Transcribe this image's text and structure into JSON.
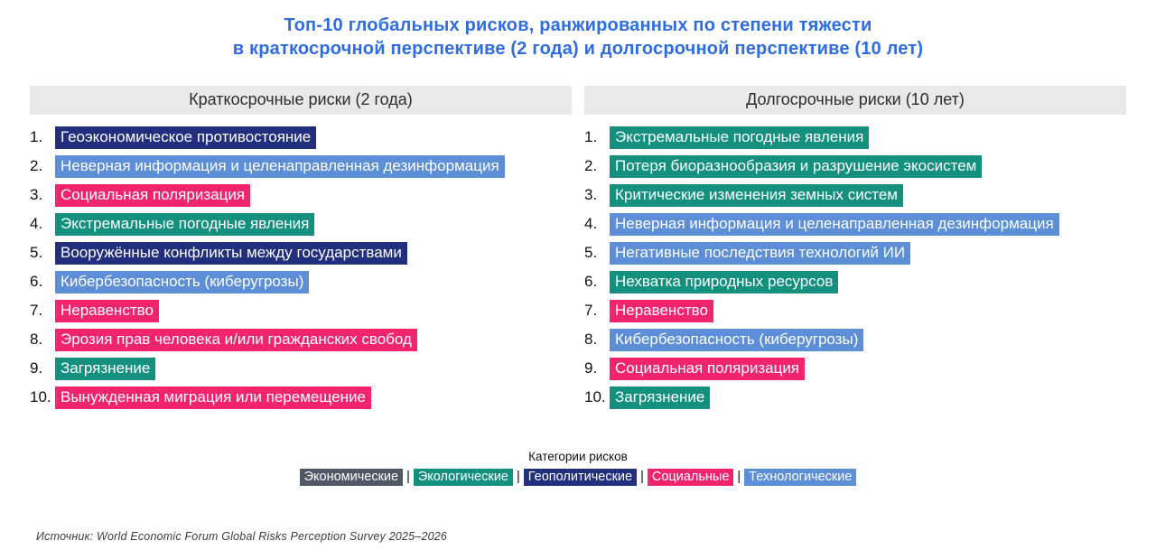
{
  "page": {
    "title_line1": "Топ-10 глобальных рисков, ранжированных по степени тяжести",
    "title_line2": "в краткосрочной перспективе (2 года) и долгосрочной перспективе (10 лет)"
  },
  "chart_data": {
    "type": "table",
    "title": "Топ-10 глобальных рисков, ранжированных по степени тяжести в краткосрочной перспективе (2 года) и долгосрочной перспективе (10 лет)",
    "columns": [
      {
        "header": "Краткосрочные риски (2 года)",
        "items": [
          {
            "rank": "1.",
            "label": "Геоэкономическое противостояние",
            "category": "geopolitical"
          },
          {
            "rank": "2.",
            "label": "Неверная информация и целенаправленная дезинформация",
            "category": "technological"
          },
          {
            "rank": "3.",
            "label": "Социальная поляризация",
            "category": "social"
          },
          {
            "rank": "4.",
            "label": "Экстремальные погодные явления",
            "category": "environmental"
          },
          {
            "rank": "5.",
            "label": "Вооружённые конфликты между государствами",
            "category": "geopolitical"
          },
          {
            "rank": "6.",
            "label": "Кибербезопасность (киберугрозы)",
            "category": "technological"
          },
          {
            "rank": "7.",
            "label": "Неравенство",
            "category": "social"
          },
          {
            "rank": "8.",
            "label": "Эрозия прав человека и/или гражданских свобод",
            "category": "social"
          },
          {
            "rank": "9.",
            "label": "Загрязнение",
            "category": "environmental"
          },
          {
            "rank": "10.",
            "label": "Вынужденная миграция или перемещение",
            "category": "social"
          }
        ]
      },
      {
        "header": "Долгосрочные риски (10 лет)",
        "items": [
          {
            "rank": "1.",
            "label": "Экстремальные погодные явления",
            "category": "environmental"
          },
          {
            "rank": "2.",
            "label": "Потеря биоразнообразия и разрушение экосистем",
            "category": "environmental"
          },
          {
            "rank": "3.",
            "label": "Критические изменения земных систем",
            "category": "environmental"
          },
          {
            "rank": "4.",
            "label": "Неверная информация и целенаправленная дезинформация",
            "category": "technological"
          },
          {
            "rank": "5.",
            "label": "Негативные последствия технологий ИИ",
            "category": "technological"
          },
          {
            "rank": "6.",
            "label": "Нехватка природных ресурсов",
            "category": "environmental"
          },
          {
            "rank": "7.",
            "label": "Неравенство",
            "category": "social"
          },
          {
            "rank": "8.",
            "label": "Кибербезопасность (киберугрозы)",
            "category": "technological"
          },
          {
            "rank": "9.",
            "label": "Социальная поляризация",
            "category": "social"
          },
          {
            "rank": "10.",
            "label": "Загрязнение",
            "category": "environmental"
          }
        ]
      }
    ],
    "legend": {
      "title": "Категории рисков",
      "separator": "|",
      "items": [
        {
          "label": "Экономические",
          "category": "economic"
        },
        {
          "label": "Экологические",
          "category": "environmental"
        },
        {
          "label": "Геополитические",
          "category": "geopolitical"
        },
        {
          "label": "Социальные",
          "category": "social"
        },
        {
          "label": "Технологические",
          "category": "technological"
        }
      ]
    },
    "source": "Источник: World Economic Forum Global Risks Perception Survey 2025–2026"
  },
  "colors": {
    "economic": "#4e5867",
    "environmental": "#14917e",
    "geopolitical": "#222e7e",
    "social": "#f1246d",
    "technological": "#5d8ed8",
    "title": "#2e6ce4",
    "header_bg": "#e9e9e9",
    "chip_text": "#ffffff"
  }
}
